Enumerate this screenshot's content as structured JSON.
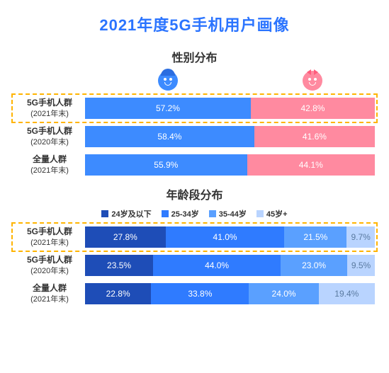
{
  "title": "2021年度5G手机用户画像",
  "colors": {
    "title": "#2b74ff",
    "text": "#333333",
    "highlight_border": "#ffb400",
    "male": "#3d8bff",
    "female": "#ff8aa0",
    "age1": "#1e4db7",
    "age2": "#2f7bff",
    "age3": "#5aa0ff",
    "age4": "#b9d4ff",
    "age4_text": "#5a7aa0"
  },
  "gender_section": {
    "title": "性别分布",
    "icons": {
      "male_weight": 57.2,
      "female_weight": 42.8
    },
    "rows": [
      {
        "label_main": "5G手机人群",
        "label_sub": "(2021年末)",
        "highlight": true,
        "segments": [
          {
            "value": 57.2,
            "label": "57.2%",
            "color_key": "male"
          },
          {
            "value": 42.8,
            "label": "42.8%",
            "color_key": "female"
          }
        ]
      },
      {
        "label_main": "5G手机人群",
        "label_sub": "(2020年末)",
        "highlight": false,
        "segments": [
          {
            "value": 58.4,
            "label": "58.4%",
            "color_key": "male"
          },
          {
            "value": 41.6,
            "label": "41.6%",
            "color_key": "female"
          }
        ]
      },
      {
        "label_main": "全量人群",
        "label_sub": "(2021年末)",
        "highlight": false,
        "segments": [
          {
            "value": 55.9,
            "label": "55.9%",
            "color_key": "male"
          },
          {
            "value": 44.1,
            "label": "44.1%",
            "color_key": "female"
          }
        ]
      }
    ]
  },
  "age_section": {
    "title": "年龄段分布",
    "legend": [
      {
        "label": "24岁及以下",
        "color_key": "age1"
      },
      {
        "label": "25-34岁",
        "color_key": "age2"
      },
      {
        "label": "35-44岁",
        "color_key": "age3"
      },
      {
        "label": "45岁+",
        "color_key": "age4"
      }
    ],
    "rows": [
      {
        "label_main": "5G手机人群",
        "label_sub": "(2021年末)",
        "highlight": true,
        "segments": [
          {
            "value": 27.8,
            "label": "27.8%",
            "color_key": "age1"
          },
          {
            "value": 41.0,
            "label": "41.0%",
            "color_key": "age2"
          },
          {
            "value": 21.5,
            "label": "21.5%",
            "color_key": "age3"
          },
          {
            "value": 9.7,
            "label": "9.7%",
            "color_key": "age4",
            "text_color_key": "age4_text"
          }
        ]
      },
      {
        "label_main": "5G手机人群",
        "label_sub": "(2020年末)",
        "highlight": false,
        "segments": [
          {
            "value": 23.5,
            "label": "23.5%",
            "color_key": "age1"
          },
          {
            "value": 44.0,
            "label": "44.0%",
            "color_key": "age2"
          },
          {
            "value": 23.0,
            "label": "23.0%",
            "color_key": "age3"
          },
          {
            "value": 9.5,
            "label": "9.5%",
            "color_key": "age4",
            "text_color_key": "age4_text"
          }
        ]
      },
      {
        "label_main": "全量人群",
        "label_sub": "(2021年末)",
        "highlight": false,
        "segments": [
          {
            "value": 22.8,
            "label": "22.8%",
            "color_key": "age1"
          },
          {
            "value": 33.8,
            "label": "33.8%",
            "color_key": "age2"
          },
          {
            "value": 24.0,
            "label": "24.0%",
            "color_key": "age3"
          },
          {
            "value": 19.4,
            "label": "19.4%",
            "color_key": "age4",
            "text_color_key": "age4_text"
          }
        ]
      }
    ]
  }
}
